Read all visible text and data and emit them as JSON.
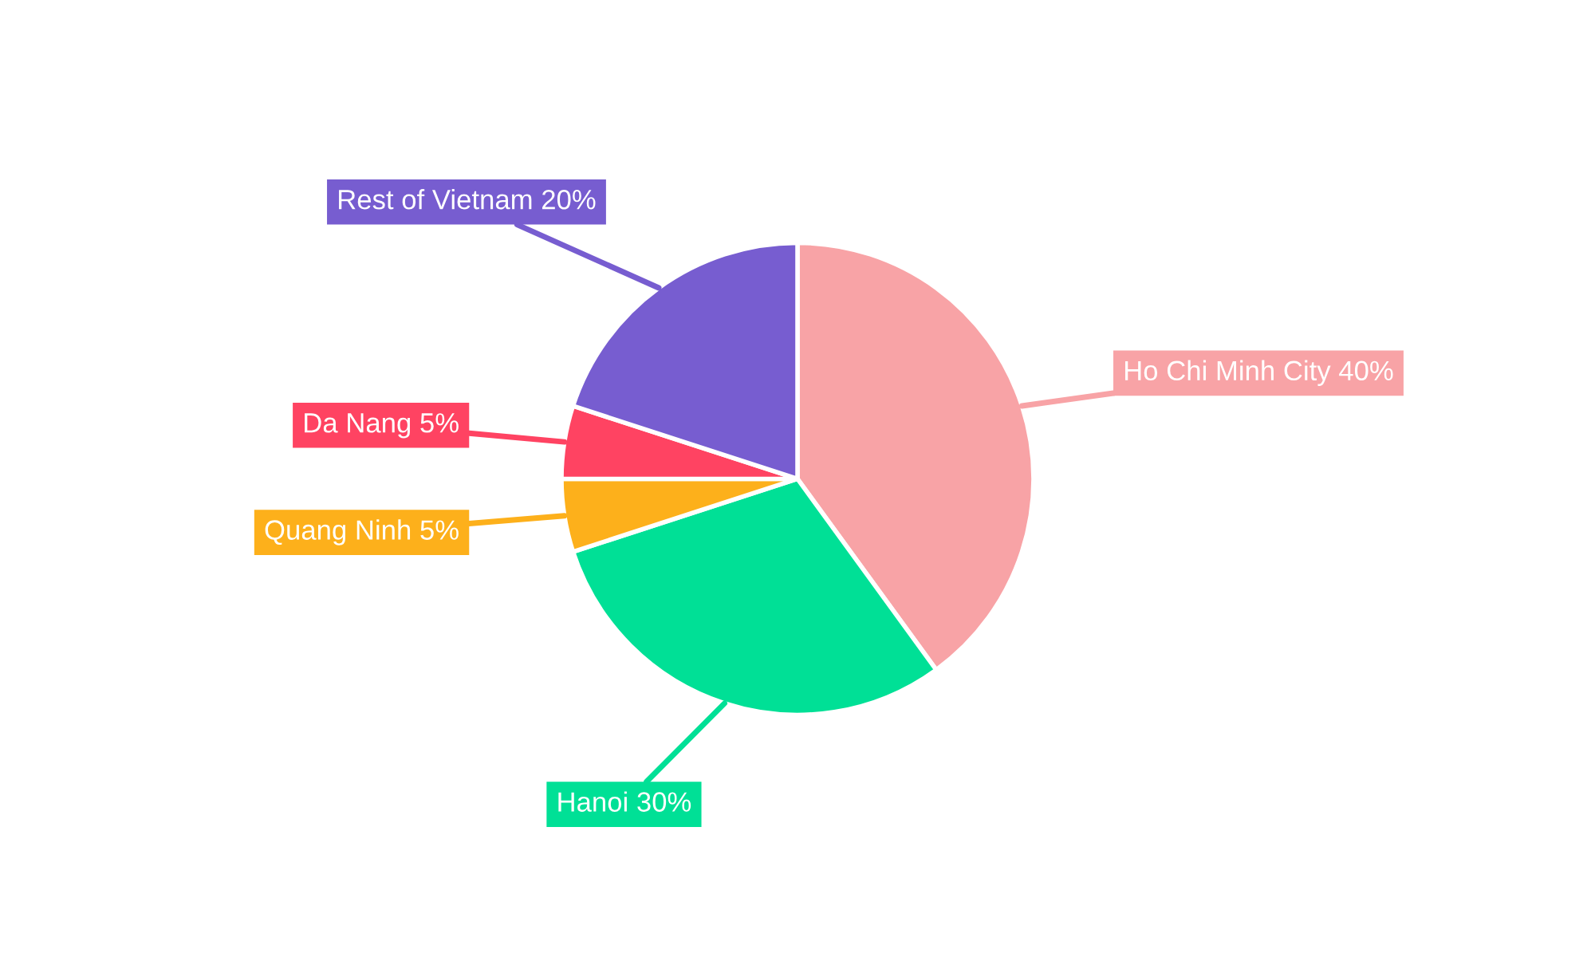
{
  "chart_data": {
    "type": "pie",
    "categories": [
      "Ho Chi Minh City",
      "Hanoi",
      "Quang Ninh",
      "Da Nang",
      "Rest of Vietnam"
    ],
    "values": [
      40,
      30,
      5,
      5,
      20
    ],
    "value_labels": [
      "40%",
      "30%",
      "5%",
      "5%",
      "20%"
    ],
    "colors": [
      "#f8a3a6",
      "#00e096",
      "#fdb01b",
      "#ff4362",
      "#775dd0"
    ]
  }
}
